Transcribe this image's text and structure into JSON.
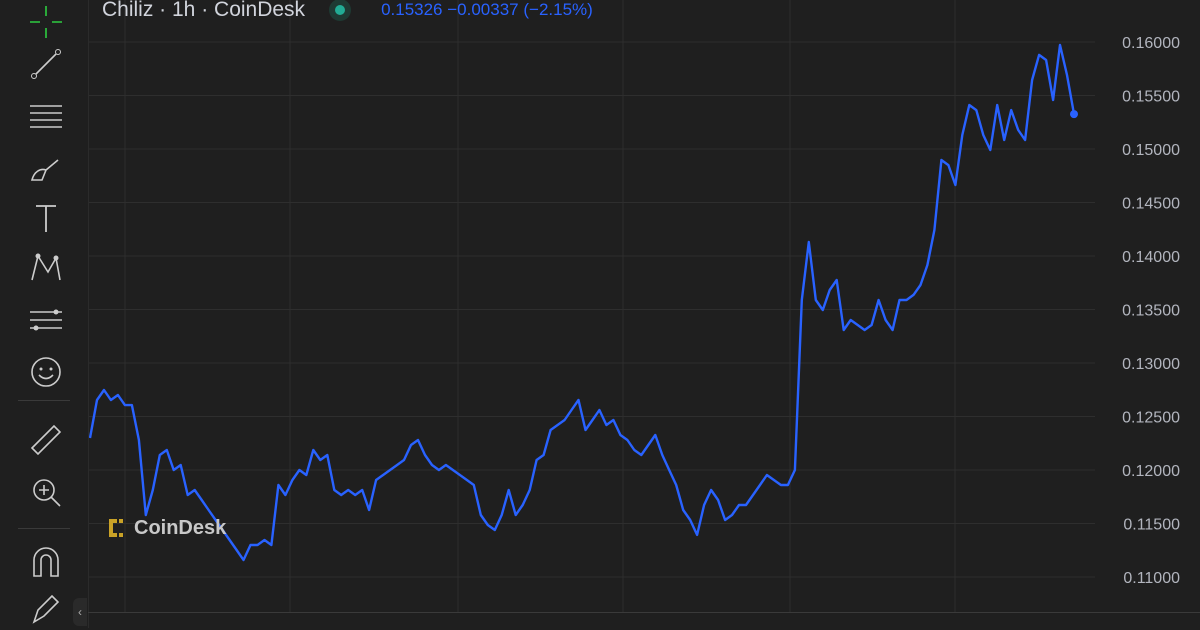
{
  "legend": {
    "symbol": "Chiliz · 1h · CoinDesk",
    "market_status": "open",
    "last_price": "0.15326",
    "change": "−0.00337",
    "change_pct": "(−2.15%)"
  },
  "toolbar": {
    "tools": [
      "crosshair-icon",
      "trend-line-icon",
      "horizontal-lines-icon",
      "brush-icon",
      "text-icon",
      "pattern-icon",
      "forecast-icon",
      "emoji-icon",
      "ruler-icon",
      "zoom-in-icon",
      "magnet-icon",
      "lock-drawing-icon"
    ]
  },
  "watermark": {
    "text": "CoinDesk"
  },
  "colors": {
    "line": "#2962ff",
    "background": "#1f1f1f",
    "grid": "#2e2e2e",
    "axis_text": "#b2b5be",
    "logo": "#c9a227"
  },
  "chart_data": {
    "type": "line",
    "title": "",
    "ylabel": "",
    "ylim": [
      0.1075,
      0.1615
    ],
    "yticks": [
      "0.16000",
      "0.15500",
      "0.15000",
      "0.14500",
      "0.14000",
      "0.13500",
      "0.13000",
      "0.12500",
      "0.12000",
      "0.11500",
      "0.11000"
    ],
    "grid": true,
    "series": [
      {
        "values": [
          0.12299,
          0.12654,
          0.12748,
          0.12654,
          0.12701,
          0.12607,
          0.12607,
          0.1228,
          0.11579,
          0.11813,
          0.1214,
          0.12187,
          0.12,
          0.12047,
          0.11766,
          0.11813,
          0.1172,
          0.11626,
          0.11533,
          0.11439,
          0.11346,
          0.11252,
          0.11159,
          0.11299,
          0.11299,
          0.11346,
          0.11299,
          0.1186,
          0.11766,
          0.11907,
          0.12,
          0.11953,
          0.12187,
          0.12093,
          0.1214,
          0.11813,
          0.11766,
          0.11813,
          0.11766,
          0.11813,
          0.11626,
          0.11907,
          0.11953,
          0.12,
          0.12047,
          0.12093,
          0.12234,
          0.1228,
          0.1214,
          0.12047,
          0.12,
          0.12047,
          0.12,
          0.11953,
          0.11907,
          0.1186,
          0.11579,
          0.11486,
          0.11439,
          0.11579,
          0.11813,
          0.11579,
          0.11673,
          0.11813,
          0.12093,
          0.1214,
          0.12374,
          0.12421,
          0.12467,
          0.12561,
          0.12654,
          0.12374,
          0.12467,
          0.12561,
          0.12421,
          0.12467,
          0.12327,
          0.1228,
          0.12187,
          0.1214,
          0.12234,
          0.12327,
          0.1214,
          0.12,
          0.1186,
          0.11626,
          0.11533,
          0.11393,
          0.11673,
          0.11813,
          0.1172,
          0.11533,
          0.11579,
          0.11673,
          0.11673,
          0.11766,
          0.1186,
          0.11953,
          0.11907,
          0.1186,
          0.1186,
          0.12,
          0.13589,
          0.14131,
          0.13589,
          0.13495,
          0.13682,
          0.13776,
          0.13308,
          0.13402,
          0.13355,
          0.13308,
          0.13355,
          0.13589,
          0.13402,
          0.13308,
          0.13589,
          0.13589,
          0.13636,
          0.13729,
          0.13916,
          0.14243,
          0.14897,
          0.1485,
          0.14664,
          0.15131,
          0.15411,
          0.15364,
          0.15131,
          0.14991,
          0.15411,
          0.15084,
          0.15364,
          0.15178,
          0.15084,
          0.15645,
          0.15879,
          0.15832,
          0.15458,
          0.15972,
          0.15692,
          0.15326
        ]
      }
    ]
  }
}
